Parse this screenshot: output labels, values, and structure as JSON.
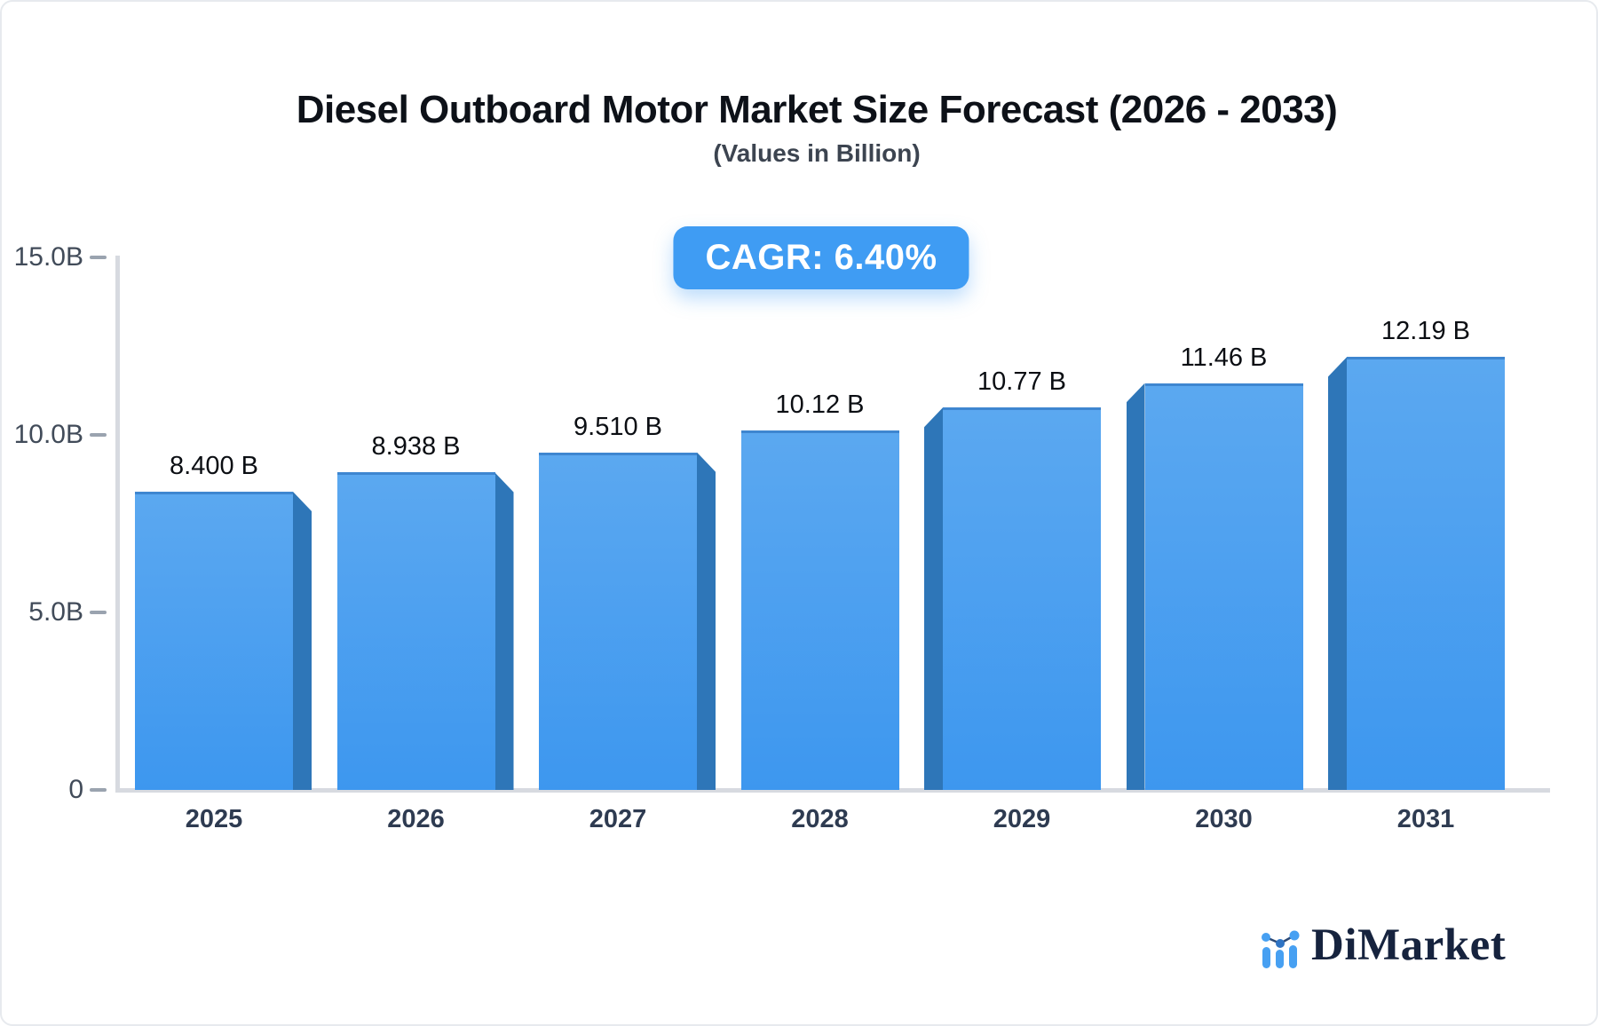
{
  "header": {
    "title": "Diesel Outboard Motor Market Size Forecast (2026 - 2033)",
    "subtitle": "(Values in Billion)",
    "cagr_label": "CAGR: 6.40%"
  },
  "chart_data": {
    "type": "bar",
    "title": "Diesel Outboard Motor Market Size Forecast (2026 - 2033)",
    "subtitle": "(Values in Billion)",
    "cagr": "6.40%",
    "categories": [
      "2025",
      "2026",
      "2027",
      "2028",
      "2029",
      "2030",
      "2031"
    ],
    "values": [
      8.4,
      8.938,
      9.51,
      10.12,
      10.77,
      11.46,
      12.19
    ],
    "value_labels": [
      "8.400 B",
      "8.938 B",
      "9.510 B",
      "10.12 B",
      "10.77 B",
      "11.46 B",
      "12.19 B"
    ],
    "ylabel": "",
    "xlabel": "",
    "ylim": [
      0,
      15
    ],
    "y_ticks": [
      {
        "value": 0,
        "label": "0"
      },
      {
        "value": 5,
        "label": "5.0B"
      },
      {
        "value": 10,
        "label": "10.0B"
      },
      {
        "value": 15,
        "label": "15.0B"
      }
    ],
    "grid": false,
    "legend_position": "none",
    "bar_style": "3d-perspective-toward-center"
  },
  "colors": {
    "bar_top": "#5BA8F0",
    "bar_bottom": "#3D97EF",
    "bar_side": "#2E76B8",
    "bar_edge": "#3E86D0",
    "badge_bg": "#3F9CF3",
    "axis_line": "#D7DAE0",
    "tick_dash": "#9AA3AF",
    "logo_blue": "#47A0F2",
    "logo_navy": "#16233E"
  },
  "watermark": {
    "brand": "DiMarket"
  }
}
